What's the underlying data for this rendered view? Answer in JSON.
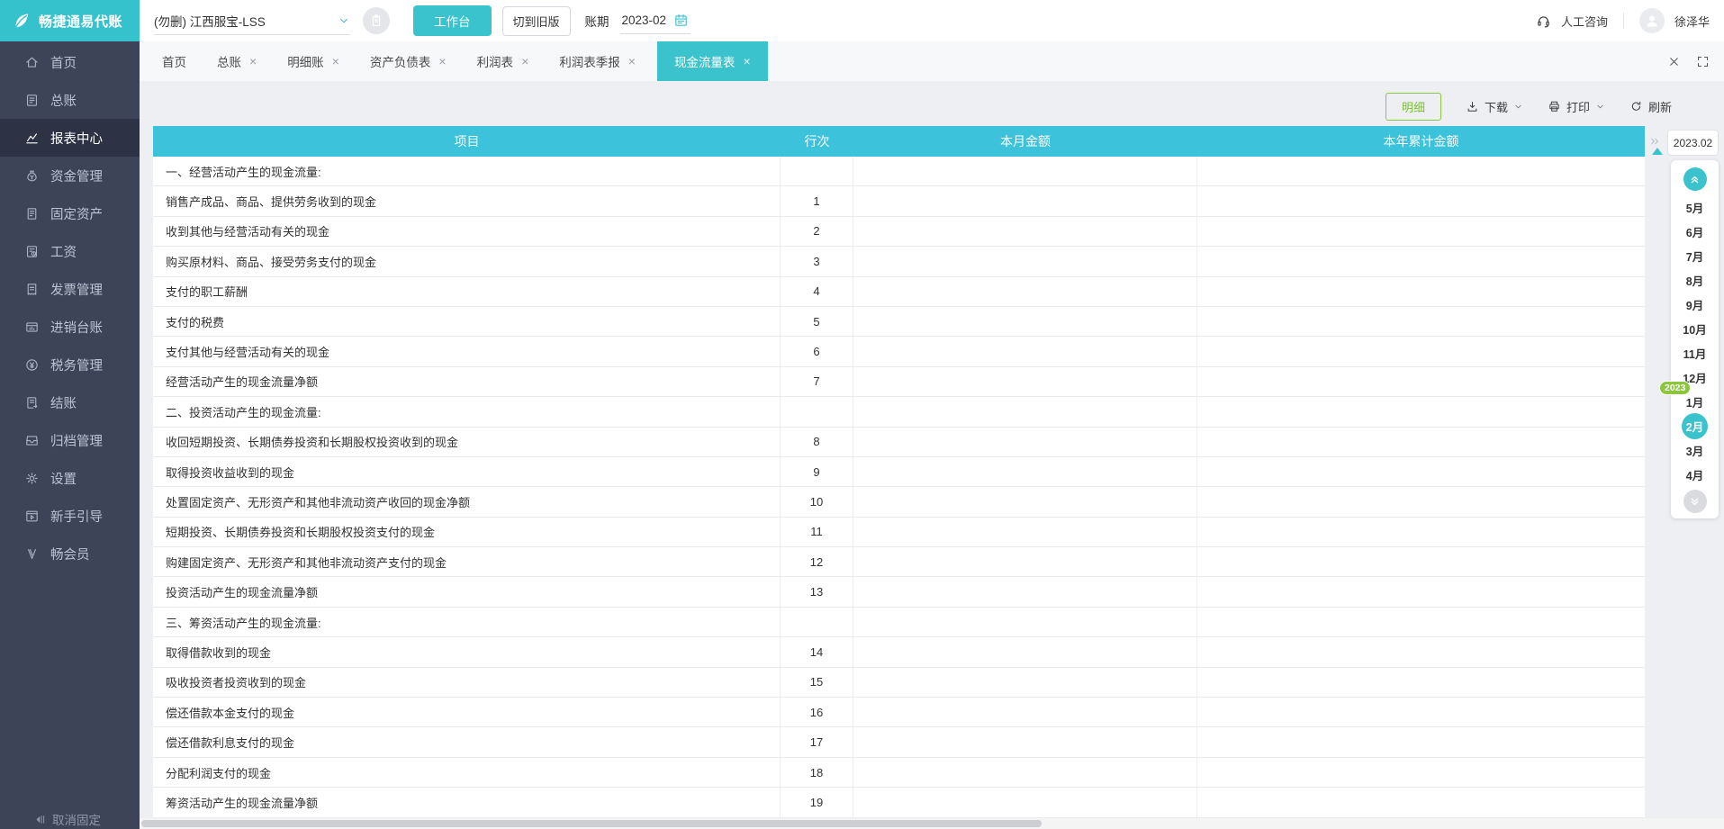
{
  "app": {
    "logo_text": "畅捷通易代账"
  },
  "topbar": {
    "account_selector": "(勿删) 江西服宝-LSS",
    "workbench_button": "工作台",
    "switch_old_button": "切到旧版",
    "period_label": "账期",
    "period_value": "2023-02",
    "support_label": "人工咨询",
    "user_name": "徐泽华"
  },
  "sidebar": {
    "items": [
      {
        "id": "home",
        "label": "首页",
        "icon": "home-icon",
        "active": false
      },
      {
        "id": "ledger",
        "label": "总账",
        "icon": "ledger-icon",
        "active": false
      },
      {
        "id": "reports",
        "label": "报表中心",
        "icon": "report-icon",
        "active": true
      },
      {
        "id": "funds",
        "label": "资金管理",
        "icon": "funds-icon",
        "active": false
      },
      {
        "id": "assets",
        "label": "固定资产",
        "icon": "asset-icon",
        "active": false
      },
      {
        "id": "salary",
        "label": "工资",
        "icon": "salary-icon",
        "active": false
      },
      {
        "id": "invoice",
        "label": "发票管理",
        "icon": "invoice-icon",
        "active": false
      },
      {
        "id": "trade",
        "label": "进销台账",
        "icon": "trade-icon",
        "active": false
      },
      {
        "id": "tax",
        "label": "税务管理",
        "icon": "tax-icon",
        "active": false
      },
      {
        "id": "closing",
        "label": "结账",
        "icon": "closing-icon",
        "active": false
      },
      {
        "id": "archive",
        "label": "归档管理",
        "icon": "archive-icon",
        "active": false
      },
      {
        "id": "settings",
        "label": "设置",
        "icon": "settings-icon",
        "active": false
      },
      {
        "id": "guide",
        "label": "新手引导",
        "icon": "guide-icon",
        "active": false
      },
      {
        "id": "member",
        "label": "畅会员",
        "icon": "member-icon",
        "active": false
      }
    ],
    "unpin_label": "取消固定"
  },
  "tabs": [
    {
      "label": "首页",
      "closable": false,
      "active": false
    },
    {
      "label": "总账",
      "closable": true,
      "active": false
    },
    {
      "label": "明细账",
      "closable": true,
      "active": false
    },
    {
      "label": "资产负债表",
      "closable": true,
      "active": false
    },
    {
      "label": "利润表",
      "closable": true,
      "active": false
    },
    {
      "label": "利润表季报",
      "closable": true,
      "active": false
    },
    {
      "label": "现金流量表",
      "closable": true,
      "active": true
    }
  ],
  "toolbar": {
    "detail_label": "明细",
    "download_label": "下载",
    "print_label": "打印",
    "refresh_label": "刷新"
  },
  "table": {
    "headers": [
      "项目",
      "行次",
      "本月金额",
      "本年累计金额"
    ],
    "rows": [
      {
        "item": "一、经营活动产生的现金流量:",
        "line": "",
        "month_amount": "",
        "year_amount": ""
      },
      {
        "item": "销售产成品、商品、提供劳务收到的现金",
        "line": "1",
        "month_amount": "",
        "year_amount": ""
      },
      {
        "item": "收到其他与经营活动有关的现金",
        "line": "2",
        "month_amount": "",
        "year_amount": ""
      },
      {
        "item": "购买原材料、商品、接受劳务支付的现金",
        "line": "3",
        "month_amount": "",
        "year_amount": ""
      },
      {
        "item": "支付的职工薪酬",
        "line": "4",
        "month_amount": "",
        "year_amount": ""
      },
      {
        "item": "支付的税费",
        "line": "5",
        "month_amount": "",
        "year_amount": ""
      },
      {
        "item": "支付其他与经营活动有关的现金",
        "line": "6",
        "month_amount": "",
        "year_amount": ""
      },
      {
        "item": "经营活动产生的现金流量净额",
        "line": "7",
        "month_amount": "",
        "year_amount": ""
      },
      {
        "item": "二、投资活动产生的现金流量:",
        "line": "",
        "month_amount": "",
        "year_amount": ""
      },
      {
        "item": "收回短期投资、长期债券投资和长期股权投资收到的现金",
        "line": "8",
        "month_amount": "",
        "year_amount": ""
      },
      {
        "item": "取得投资收益收到的现金",
        "line": "9",
        "month_amount": "",
        "year_amount": ""
      },
      {
        "item": "处置固定资产、无形资产和其他非流动资产收回的现金净额",
        "line": "10",
        "month_amount": "",
        "year_amount": ""
      },
      {
        "item": "短期投资、长期债券投资和长期股权投资支付的现金",
        "line": "11",
        "month_amount": "",
        "year_amount": ""
      },
      {
        "item": "购建固定资产、无形资产和其他非流动资产支付的现金",
        "line": "12",
        "month_amount": "",
        "year_amount": ""
      },
      {
        "item": "投资活动产生的现金流量净额",
        "line": "13",
        "month_amount": "",
        "year_amount": ""
      },
      {
        "item": "三、筹资活动产生的现金流量:",
        "line": "",
        "month_amount": "",
        "year_amount": ""
      },
      {
        "item": "取得借款收到的现金",
        "line": "14",
        "month_amount": "",
        "year_amount": ""
      },
      {
        "item": "吸收投资者投资收到的现金",
        "line": "15",
        "month_amount": "",
        "year_amount": ""
      },
      {
        "item": "偿还借款本金支付的现金",
        "line": "16",
        "month_amount": "",
        "year_amount": ""
      },
      {
        "item": "偿还借款利息支付的现金",
        "line": "17",
        "month_amount": "",
        "year_amount": ""
      },
      {
        "item": "分配利润支付的现金",
        "line": "18",
        "month_amount": "",
        "year_amount": ""
      },
      {
        "item": "筹资活动产生的现金流量净额",
        "line": "19",
        "month_amount": "",
        "year_amount": ""
      }
    ]
  },
  "month_panel": {
    "current_period": "2023.02",
    "year_badge": "2023",
    "months": [
      {
        "label": "5月",
        "selected": false
      },
      {
        "label": "6月",
        "selected": false
      },
      {
        "label": "7月",
        "selected": false
      },
      {
        "label": "8月",
        "selected": false
      },
      {
        "label": "9月",
        "selected": false
      },
      {
        "label": "10月",
        "selected": false
      },
      {
        "label": "11月",
        "selected": false
      },
      {
        "label": "12月",
        "selected": false
      },
      {
        "label": "1月",
        "selected": false,
        "year_badge": true
      },
      {
        "label": "2月",
        "selected": true
      },
      {
        "label": "3月",
        "selected": false
      },
      {
        "label": "4月",
        "selected": false
      }
    ]
  },
  "colors": {
    "teal": "#3ac2cd",
    "table_header": "#3cc2da",
    "sidebar_bg": "#3d4457",
    "sidebar_active_bg": "#2d3345",
    "green_accent": "#8cc63f",
    "content_bg": "#edeff3"
  }
}
